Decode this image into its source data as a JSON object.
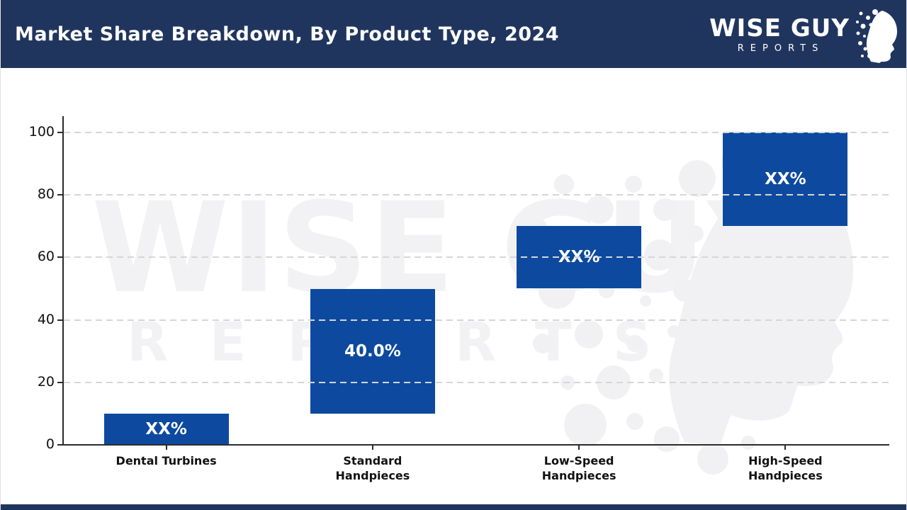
{
  "header": {
    "title": "Market Share Breakdown, By Product Type, 2024",
    "background_color": "#20355e"
  },
  "logo": {
    "line1": "WISE GUY",
    "line2": "REPORTS",
    "icon": "face-profile-dots-icon"
  },
  "watermark": {
    "line1": "WISE GUY",
    "line2": "REPORTS"
  },
  "chart_data": {
    "type": "bar",
    "subtype": "floating-segment-bars (stacked market-share breakdown)",
    "title": "Market Share Breakdown, By Product Type, 2024",
    "categories": [
      "Dental Turbines",
      "Standard Handpieces",
      "Low-Speed Handpieces",
      "High-Speed Handpieces"
    ],
    "bars": [
      {
        "category": "Dental Turbines",
        "tick_lines": [
          "Dental Turbines"
        ],
        "start": 0,
        "end": 10,
        "label": "XX%"
      },
      {
        "category": "Standard Handpieces",
        "tick_lines": [
          "Standard",
          "Handpieces"
        ],
        "start": 10,
        "end": 50,
        "label": "40.0%"
      },
      {
        "category": "Low-Speed Handpieces",
        "tick_lines": [
          "Low-Speed",
          "Handpieces"
        ],
        "start": 50,
        "end": 70,
        "label": "XX%"
      },
      {
        "category": "High-Speed Handpieces",
        "tick_lines": [
          "High-Speed",
          "Handpieces"
        ],
        "start": 70,
        "end": 100,
        "label": "XX%"
      }
    ],
    "ylim": [
      0,
      100
    ],
    "yticks": [
      0,
      20,
      40,
      60,
      80,
      100
    ],
    "xlabel": "",
    "ylabel": "",
    "bar_color": "#0d4a9f",
    "grid": "horizontal dashed, drawn above bars",
    "gridline_color": "#d6d6d6",
    "legend": "none"
  }
}
